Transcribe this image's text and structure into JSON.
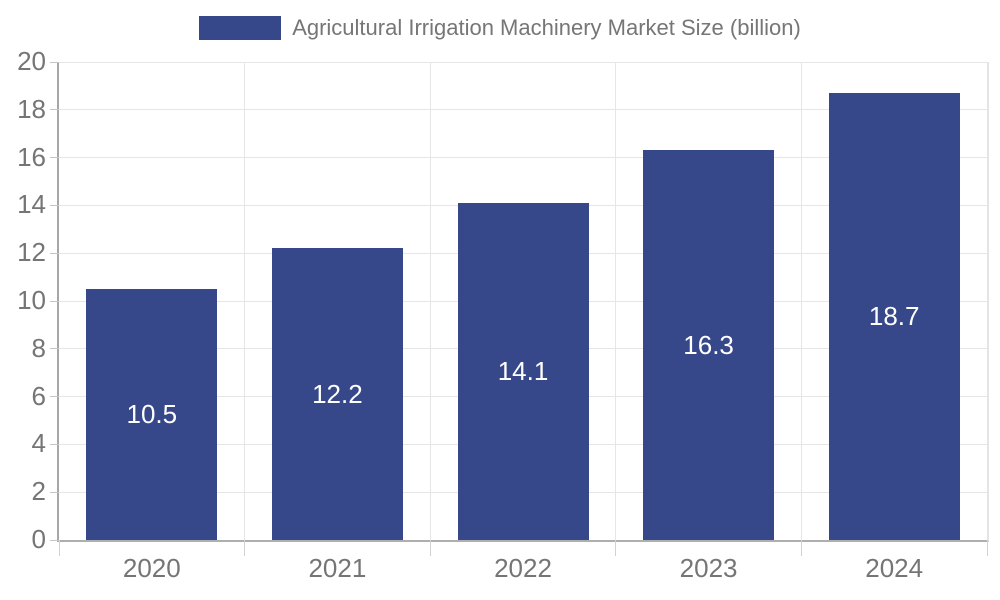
{
  "legend": {
    "label": "Agricultural Irrigation Machinery Market Size (billion)"
  },
  "chart_data": {
    "type": "bar",
    "title": "Agricultural Irrigation Machinery Market Size (billion)",
    "series_name": "Agricultural Irrigation Machinery Market Size (billion)",
    "categories": [
      "2020",
      "2021",
      "2022",
      "2023",
      "2024"
    ],
    "values": [
      10.5,
      12.2,
      14.1,
      16.3,
      18.7
    ],
    "value_labels": [
      "10.5",
      "12.2",
      "14.1",
      "16.3",
      "18.7"
    ],
    "xlabel": "",
    "ylabel": "",
    "ylim": [
      0,
      20
    ],
    "yticks": [
      0,
      2,
      4,
      6,
      8,
      10,
      12,
      14,
      16,
      18,
      20
    ],
    "grid": true,
    "legend_position": "top-center",
    "value_label_position": "center-of-bar"
  },
  "colors": {
    "bar": "#36488A",
    "grid": "#e6e6e6",
    "axis_left": "#a6a6a6",
    "axis_bottom": "#aeaeae",
    "axis_right": "#e4e4e4",
    "tick_label": "#757575",
    "legend_text": "#767676",
    "value_label": "#ffffff",
    "background": "#ffffff"
  }
}
